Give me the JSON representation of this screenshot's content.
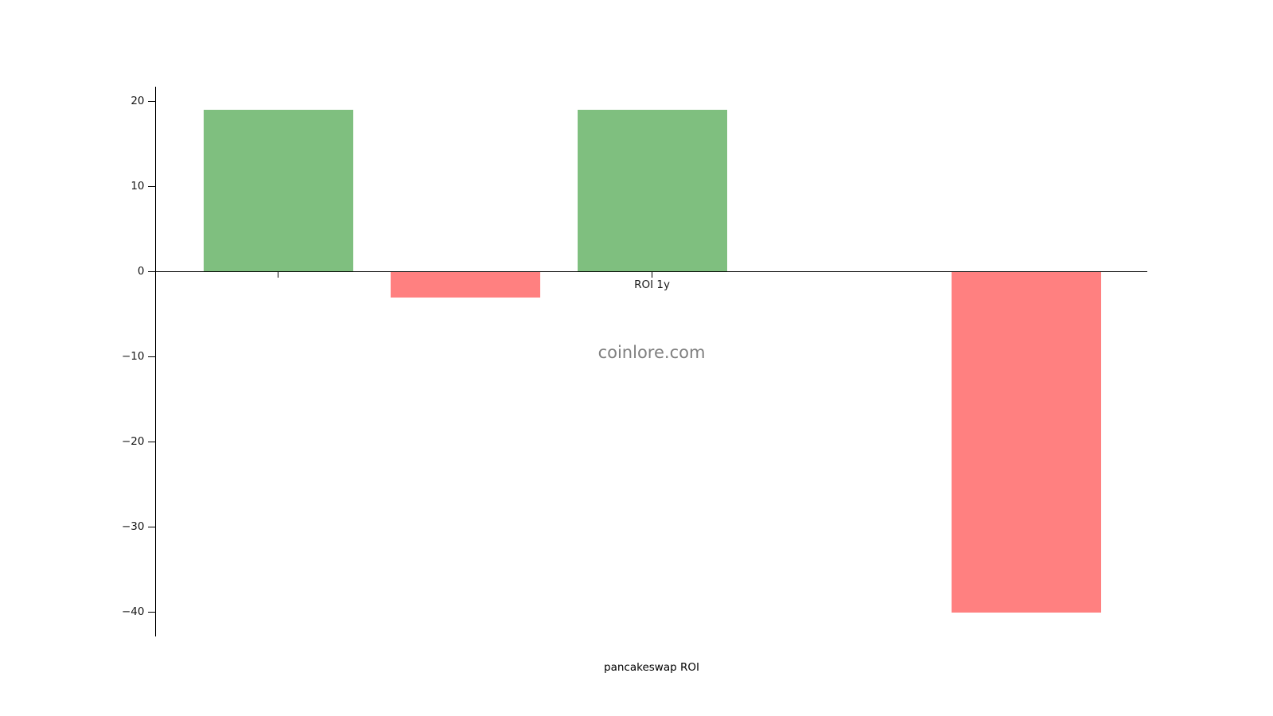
{
  "chart_data": {
    "type": "bar",
    "title": "",
    "xlabel": "pancakeswap ROI",
    "ylabel": "",
    "watermark": "coinlore.com",
    "categories": [
      "",
      "",
      "ROI 1y",
      "",
      ""
    ],
    "values": [
      19,
      -3,
      19,
      null,
      -40
    ],
    "bar_colors": [
      "#7fbf7f",
      "#ff8080",
      "#7fbf7f",
      null,
      "#ff8080"
    ],
    "x_ticks_at_slots": [
      0,
      2
    ],
    "yticks": [
      20,
      10,
      0,
      -10,
      -20,
      -30,
      -40
    ],
    "ytick_labels": [
      "20",
      "10",
      "0",
      "−10",
      "−20",
      "−30",
      "−40"
    ],
    "ylim": [
      -42.8,
      21.8
    ],
    "grid": false,
    "legend": false,
    "colors": {
      "positive": "#7fbf7f",
      "negative": "#ff8080",
      "axis": "#000000",
      "tick_label": "#1a1a1a",
      "watermark": "#808080",
      "background": "#ffffff"
    }
  }
}
